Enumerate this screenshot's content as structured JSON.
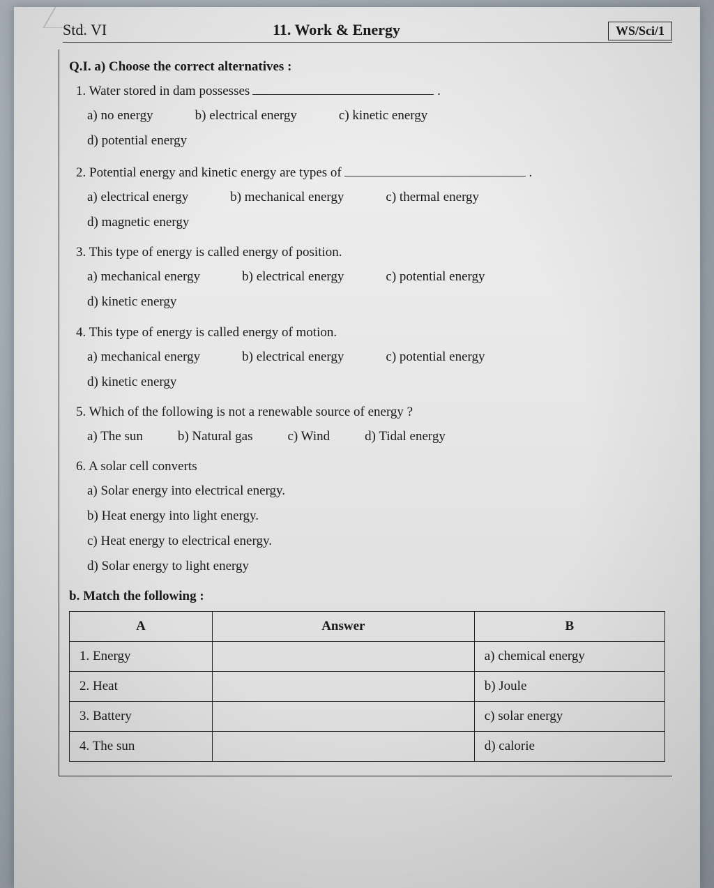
{
  "header": {
    "std": "Std. VI",
    "chapter": "11. Work & Energy",
    "ws": "WS/Sci/1"
  },
  "section_a": {
    "title": "Q.I. a) Choose the correct alternatives :",
    "questions": [
      {
        "num": "1.",
        "text": "Water stored in dam possesses",
        "has_blank": true,
        "opts": [
          {
            "l": "a)",
            "t": "no energy"
          },
          {
            "l": "b)",
            "t": "electrical energy"
          },
          {
            "l": "c)",
            "t": "kinetic energy"
          },
          {
            "l": "d)",
            "t": "potential energy"
          }
        ],
        "layout": "3-1"
      },
      {
        "num": "2.",
        "text": "Potential energy and kinetic energy are types of",
        "has_blank": true,
        "opts": [
          {
            "l": "a)",
            "t": "electrical energy"
          },
          {
            "l": "b)",
            "t": "mechanical energy"
          },
          {
            "l": "c)",
            "t": "thermal energy"
          },
          {
            "l": "d)",
            "t": "magnetic energy"
          }
        ],
        "layout": "3-1"
      },
      {
        "num": "3.",
        "text": "This type of energy is called energy of position.",
        "has_blank": false,
        "opts": [
          {
            "l": "a)",
            "t": "mechanical energy"
          },
          {
            "l": "b)",
            "t": "electrical energy"
          },
          {
            "l": "c)",
            "t": "potential energy"
          },
          {
            "l": "d)",
            "t": "kinetic energy"
          }
        ],
        "layout": "3-1"
      },
      {
        "num": "4.",
        "text": "This type of energy is called energy of motion.",
        "has_blank": false,
        "opts": [
          {
            "l": "a)",
            "t": "mechanical energy"
          },
          {
            "l": "b)",
            "t": "electrical energy"
          },
          {
            "l": "c)",
            "t": "potential energy"
          },
          {
            "l": "d)",
            "t": "kinetic energy"
          }
        ],
        "layout": "3-1"
      },
      {
        "num": "5.",
        "text": "Which of the following is not a renewable source of energy ?",
        "has_blank": false,
        "opts": [
          {
            "l": "a)",
            "t": "The sun"
          },
          {
            "l": "b)",
            "t": "Natural gas"
          },
          {
            "l": "c)",
            "t": "Wind"
          },
          {
            "l": "d)",
            "t": "Tidal energy"
          }
        ],
        "layout": "4"
      },
      {
        "num": "6.",
        "text": "A solar cell converts",
        "has_blank": false,
        "opts": [
          {
            "l": "a)",
            "t": "Solar energy into electrical energy."
          },
          {
            "l": "b)",
            "t": "Heat energy into light energy."
          },
          {
            "l": "c)",
            "t": "Heat energy to electrical energy."
          },
          {
            "l": "d)",
            "t": "Solar energy to light energy"
          }
        ],
        "layout": "2x2"
      }
    ]
  },
  "section_b": {
    "title": "b. Match the following :",
    "columns": [
      "A",
      "Answer",
      "B"
    ],
    "rows": [
      [
        "1. Energy",
        "",
        "a) chemical energy"
      ],
      [
        "2. Heat",
        "",
        "b) Joule"
      ],
      [
        "3. Battery",
        "",
        "c) solar energy"
      ],
      [
        "4. The sun",
        "",
        "d) calorie"
      ]
    ]
  }
}
